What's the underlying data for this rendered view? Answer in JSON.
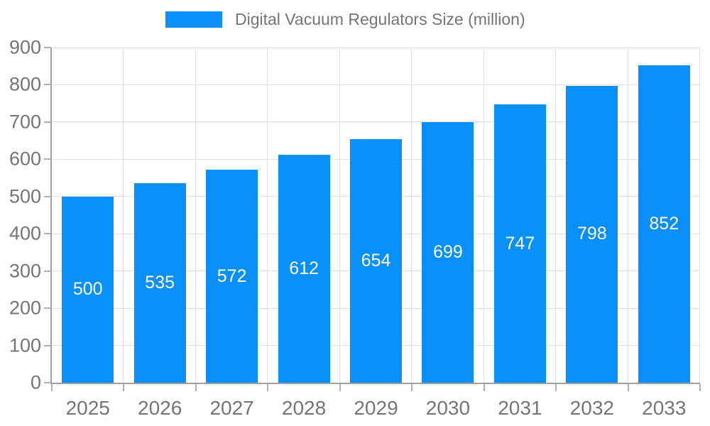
{
  "chart_data": {
    "type": "bar",
    "title": "Digital Vacuum Regulators Size (million)",
    "legend": {
      "position": "top",
      "label": "Digital Vacuum Regulators Size (million)"
    },
    "categories": [
      "2025",
      "2026",
      "2027",
      "2028",
      "2029",
      "2030",
      "2031",
      "2032",
      "2033"
    ],
    "values": [
      500,
      535,
      572,
      612,
      654,
      699,
      747,
      798,
      852
    ],
    "series": [
      {
        "name": "Digital Vacuum Regulators Size (million)",
        "values": [
          500,
          535,
          572,
          612,
          654,
          699,
          747,
          798,
          852
        ]
      }
    ],
    "xlabel": "",
    "ylabel": "",
    "ylim": [
      0,
      900
    ],
    "y_ticks": [
      0,
      100,
      200,
      300,
      400,
      500,
      600,
      700,
      800,
      900
    ],
    "grid": true,
    "value_labels_inside_bars": true,
    "colors": {
      "bar": "#0890f8",
      "bar_label": "#ffffff",
      "axis": "#9e9e9e",
      "grid": "#e0e0e0",
      "tick": "#b0b0b0",
      "text": "#757575",
      "background": "#ffffff"
    }
  }
}
